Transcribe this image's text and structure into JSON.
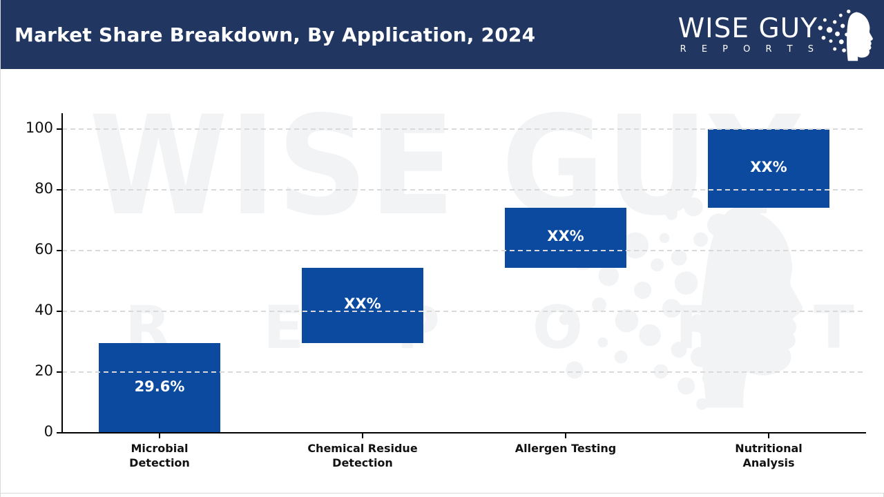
{
  "header": {
    "title": "Market Share Breakdown, By Application, 2024",
    "logo": {
      "line1": "WISE GUY",
      "line2": "R E P O R T S"
    }
  },
  "watermark": {
    "line1": "WISE GUY",
    "line2": "R E P O R T S"
  },
  "colors": {
    "header_bg": "#213661",
    "bar": "#0b4a9e",
    "grid": "#d9d9d9",
    "axis": "#000000",
    "watermark": "#f2f3f5",
    "bar_label": "#ffffff"
  },
  "chart_data": {
    "type": "bar",
    "subtype": "waterfall",
    "title": "Market Share Breakdown, By Application, 2024",
    "categories": [
      "Microbial\nDetection",
      "Chemical Residue\nDetection",
      "Allergen Testing",
      "Nutritional\nAnalysis"
    ],
    "segments": [
      {
        "category": "Microbial\nDetection",
        "start": 0,
        "end": 29.6,
        "value": 29.6,
        "label": "29.6%"
      },
      {
        "category": "Chemical Residue\nDetection",
        "start": 29.6,
        "end": 54.4,
        "value": 24.8,
        "label": "XX%"
      },
      {
        "category": "Allergen Testing",
        "start": 54.4,
        "end": 74.1,
        "value": 19.7,
        "label": "XX%"
      },
      {
        "category": "Nutritional\nAnalysis",
        "start": 74.1,
        "end": 100.0,
        "value": 25.9,
        "label": "XX%"
      }
    ],
    "xlabel": "",
    "ylabel": "",
    "ylim": [
      0,
      100
    ],
    "yticks": [
      0,
      20,
      40,
      60,
      80,
      100
    ],
    "grid": "horizontal-dashed",
    "legend": "none"
  }
}
